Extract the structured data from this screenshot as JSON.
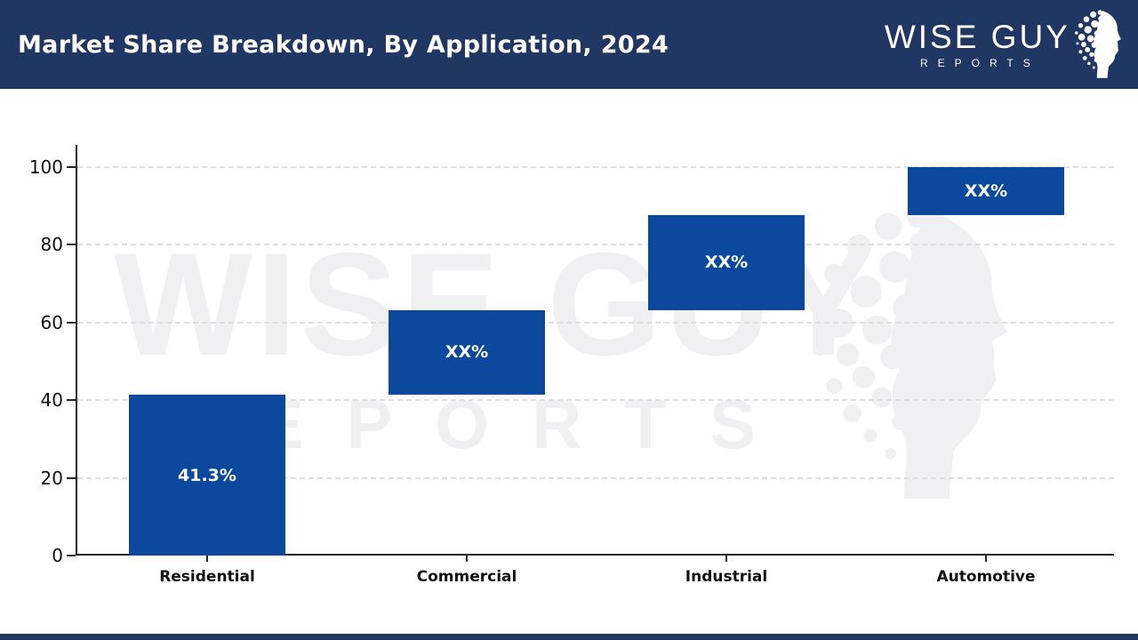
{
  "header": {
    "title": "Market Share Breakdown, By Application, 2024",
    "logo": {
      "line1": "WISE GUY",
      "line2": "REPORTS"
    }
  },
  "watermark": {
    "line1": "WISE GUY",
    "line2": "REPORTS"
  },
  "colors": {
    "header_bg": "#213763",
    "bar": "#0b489e",
    "axis": "#262626",
    "grid": "#dfdfdf",
    "bar_label": "#ffffff",
    "tick_label": "#111111",
    "watermark": "#f0f0f2",
    "background": "#ffffff"
  },
  "chart_data": {
    "type": "bar",
    "subtype": "waterfall",
    "title": "Market Share Breakdown, By Application, 2024",
    "categories": [
      "Residential",
      "Commercial",
      "Industrial",
      "Automotive"
    ],
    "segments": [
      {
        "category": "Residential",
        "start": 0,
        "end": 41.3,
        "label": "41.3%"
      },
      {
        "category": "Commercial",
        "start": 41.3,
        "end": 63.2,
        "label": "XX%"
      },
      {
        "category": "Industrial",
        "start": 63.2,
        "end": 87.5,
        "label": "XX%"
      },
      {
        "category": "Automotive",
        "start": 87.5,
        "end": 100,
        "label": "XX%"
      }
    ],
    "xlabel": "",
    "ylabel": "",
    "yticks": [
      0,
      20,
      40,
      60,
      80,
      100
    ],
    "ylim": [
      0,
      105.6
    ],
    "grid": "horizontal-dashed",
    "legend": "none",
    "bar_color": "#0b489e",
    "bar_width_fraction": 0.6
  }
}
